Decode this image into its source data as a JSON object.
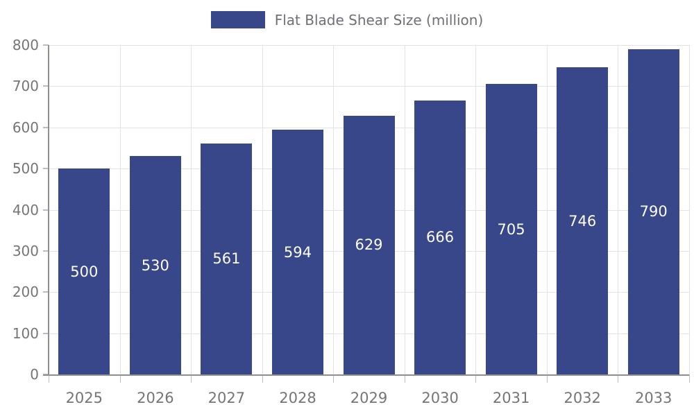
{
  "legend": {
    "label": "Flat Blade Shear Size (million)"
  },
  "chart_data": {
    "type": "bar",
    "title": "",
    "xlabel": "",
    "ylabel": "",
    "categories": [
      "2025",
      "2026",
      "2027",
      "2028",
      "2029",
      "2030",
      "2031",
      "2032",
      "2033"
    ],
    "values": [
      500,
      530,
      561,
      594,
      629,
      666,
      705,
      746,
      790
    ],
    "series": [
      {
        "name": "Flat Blade Shear Size (million)",
        "values": [
          500,
          530,
          561,
          594,
          629,
          666,
          705,
          746,
          790
        ]
      }
    ],
    "ylim": [
      0,
      800
    ],
    "ytick_interval": 100,
    "yticks": [
      0,
      100,
      200,
      300,
      400,
      500,
      600,
      700,
      800
    ],
    "grid": true,
    "legend_position": "top",
    "style": {
      "bar_color": "#38478A",
      "value_label_color": "#FFFFFF",
      "axis_label_color": "#757575",
      "grid_color": "#E2E2E8",
      "axis_line_color": "#8F8F8F",
      "tick_color": "#B9BCC9",
      "background": "#FFFFFF"
    }
  }
}
